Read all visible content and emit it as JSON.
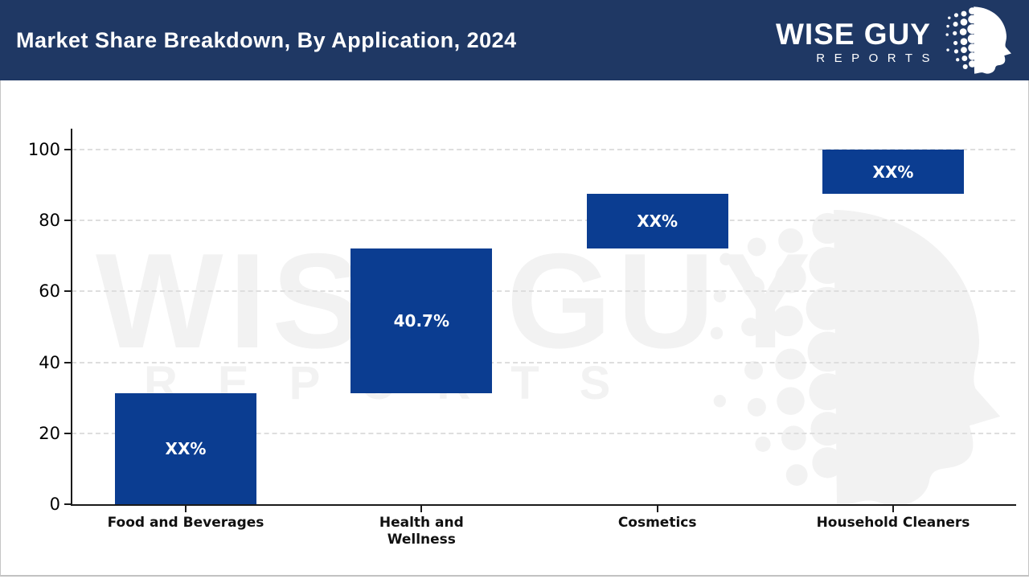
{
  "header": {
    "title": "Market Share Breakdown, By Application, 2024",
    "background_color": "#1f3864",
    "logo": {
      "line1": "WISE GUY",
      "line2": "REPORTS"
    }
  },
  "watermark": {
    "line1": "WISE GUY",
    "line2": "REPORTS"
  },
  "chart_data": {
    "type": "bar",
    "subtype": "floating-waterfall",
    "title": "Market Share Breakdown, By Application, 2024",
    "categories": [
      "Food and Beverages",
      "Health and\nWellness",
      "Cosmetics",
      "Household Cleaners"
    ],
    "segments": [
      {
        "category": "Food and Beverages",
        "start": 0,
        "end": 31.4,
        "label": "XX%"
      },
      {
        "category": "Health and Wellness",
        "start": 31.4,
        "end": 72.1,
        "label": "40.7%"
      },
      {
        "category": "Cosmetics",
        "start": 72.1,
        "end": 87.5,
        "label": "XX%"
      },
      {
        "category": "Household Cleaners",
        "start": 87.5,
        "end": 100,
        "label": "XX%"
      }
    ],
    "xlabel": "",
    "ylabel": "",
    "ylim": [
      0,
      100
    ],
    "yticks": [
      0,
      20,
      40,
      60,
      80,
      100
    ],
    "grid": "horizontal-dashed",
    "legend": "none",
    "bar_color": "#0b3d91",
    "bar_label_color": "#ffffff",
    "axis_color": "#1a1a1a",
    "gridline_color": "#dedede"
  }
}
